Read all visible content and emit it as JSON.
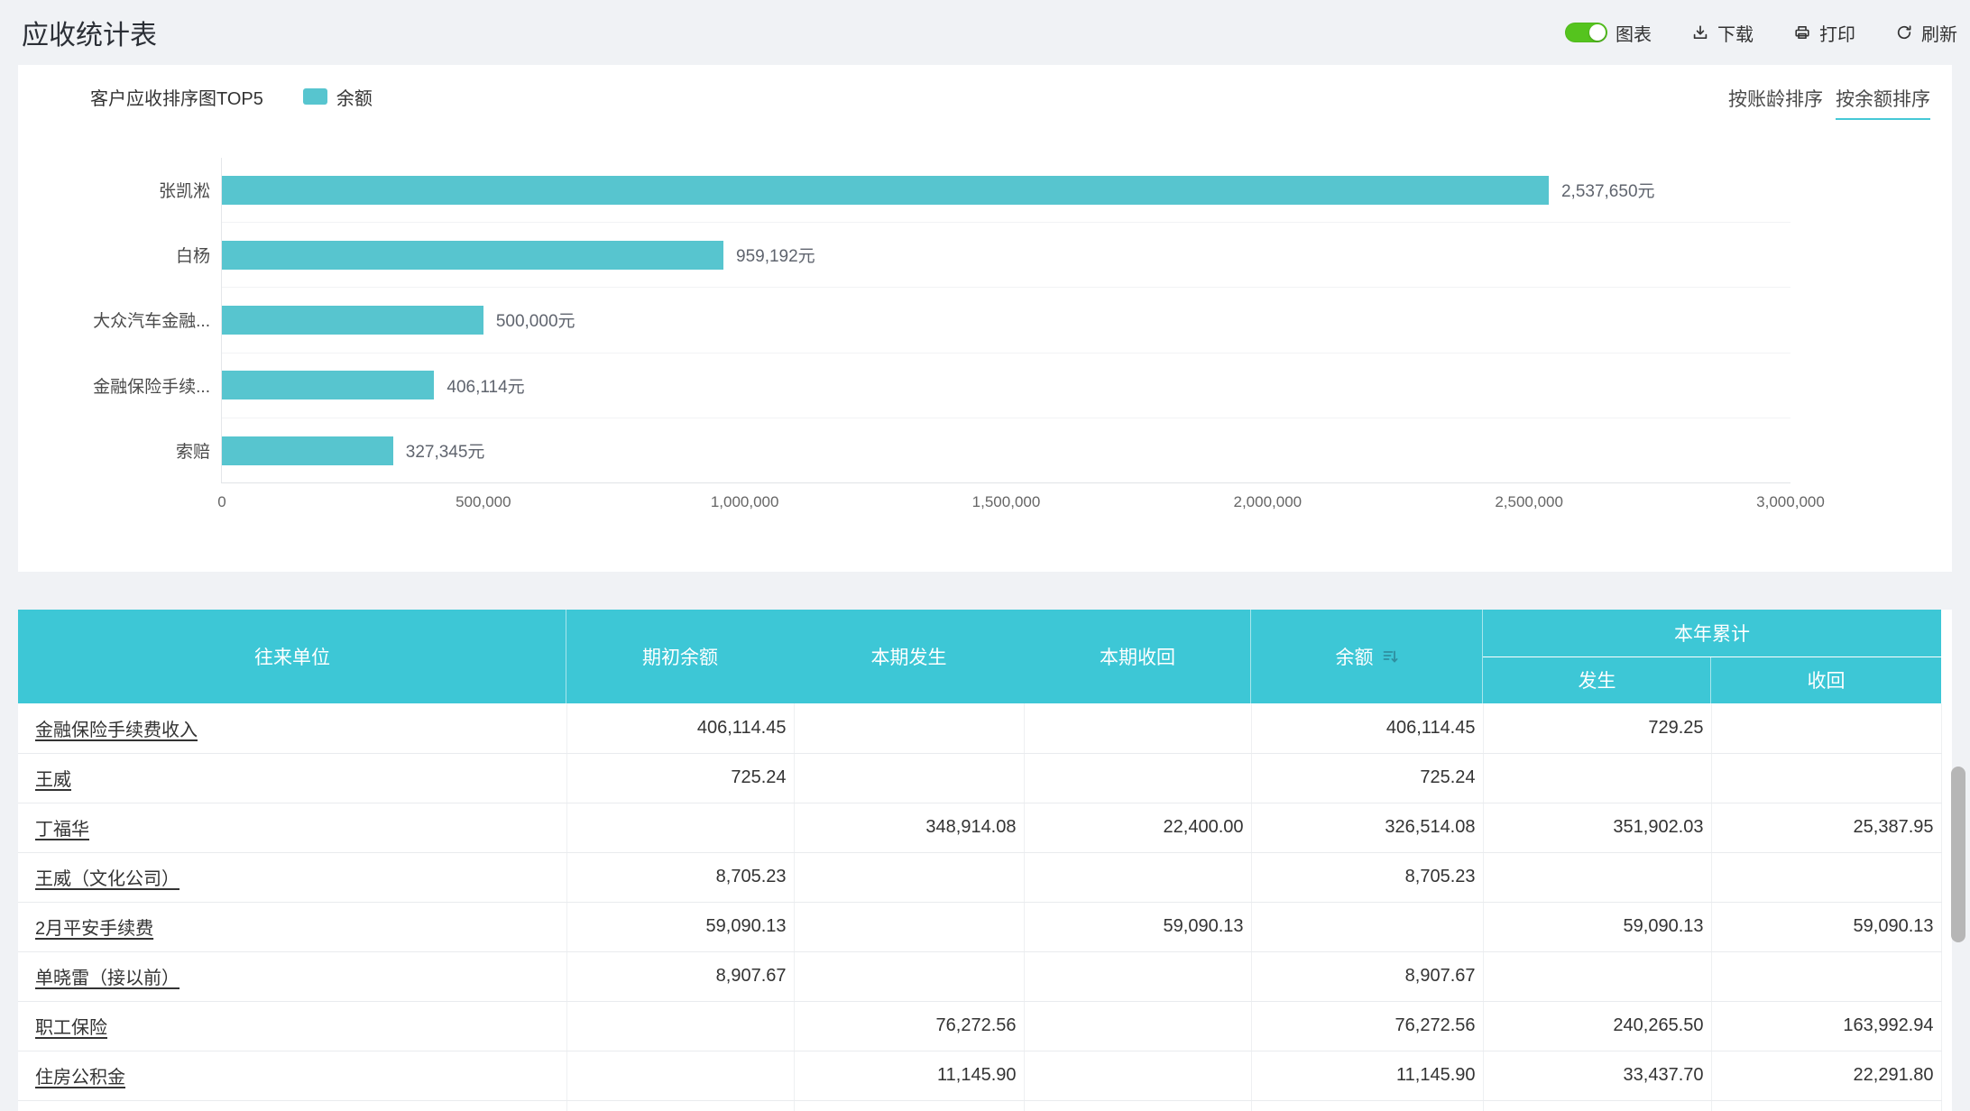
{
  "page": {
    "title": "应收统计表"
  },
  "toolbar": {
    "chart_toggle_label": "图表",
    "toggle_on": true,
    "download_label": "下载",
    "print_label": "打印",
    "refresh_label": "刷新"
  },
  "chart": {
    "title": "客户应收排序图TOP5",
    "legend_label": "余额",
    "sort_tabs": [
      {
        "label": "按账龄排序",
        "active": false
      },
      {
        "label": "按余额排序",
        "active": true
      }
    ]
  },
  "chart_data": {
    "type": "bar",
    "orientation": "horizontal",
    "title": "客户应收排序图TOP5",
    "series_name": "余额",
    "categories": [
      "张凯淞",
      "白杨",
      "大众汽车金融...",
      "金融保险手续...",
      "索赔"
    ],
    "values": [
      2537650,
      959192,
      500000,
      406114,
      327345
    ],
    "value_labels": [
      "2,537,650元",
      "959,192元",
      "500,000元",
      "406,114元",
      "327,345元"
    ],
    "xlim": [
      0,
      3000000
    ],
    "x_tick_values": [
      0,
      500000,
      1000000,
      1500000,
      2000000,
      2500000,
      3000000
    ],
    "x_tick_labels": [
      "0",
      "500,000",
      "1,000,000",
      "1,500,000",
      "2,000,000",
      "2,500,000",
      "3,000,000"
    ],
    "bar_color": "#57c5cf",
    "grid": "row-separators",
    "legend_position": "top-left"
  },
  "table": {
    "headers": {
      "unit": "往来单位",
      "opening_balance": "期初余额",
      "current_incurred": "本期发生",
      "current_received": "本期收回",
      "balance": "余额",
      "ytd": "本年累计",
      "ytd_incurred": "发生",
      "ytd_received": "收回"
    },
    "rows": [
      [
        "金融保险手续费收入",
        "406,114.45",
        "",
        "",
        "406,114.45",
        "729.25",
        ""
      ],
      [
        "王威",
        "725.24",
        "",
        "",
        "725.24",
        "",
        ""
      ],
      [
        "丁福华",
        "",
        "348,914.08",
        "22,400.00",
        "326,514.08",
        "351,902.03",
        "25,387.95"
      ],
      [
        "王威（文化公司）",
        "8,705.23",
        "",
        "",
        "8,705.23",
        "",
        ""
      ],
      [
        "2月平安手续费",
        "59,090.13",
        "",
        "59,090.13",
        "",
        "59,090.13",
        "59,090.13"
      ],
      [
        "单晓雷（接以前）",
        "8,907.67",
        "",
        "",
        "8,907.67",
        "",
        ""
      ],
      [
        "职工保险",
        "",
        "76,272.56",
        "",
        "76,272.56",
        "240,265.50",
        "163,992.94"
      ],
      [
        "住房公积金",
        "",
        "11,145.90",
        "",
        "11,145.90",
        "33,437.70",
        "22,291.80"
      ]
    ]
  },
  "colors": {
    "bar_teal": "#57c5cf",
    "table_header_teal": "#3dc7d6",
    "toggle_green": "#55c41e",
    "tab_underline_teal": "#45c8d6",
    "page_background": "#f0f2f5",
    "scrollbar_thumb": "#b6b6b6"
  },
  "icons": {
    "download": "download-tray-icon",
    "print": "printer-icon",
    "refresh": "refresh-icon",
    "balance_sort": "sort-descending-icon",
    "chart_toggle": "toggle-switch"
  }
}
